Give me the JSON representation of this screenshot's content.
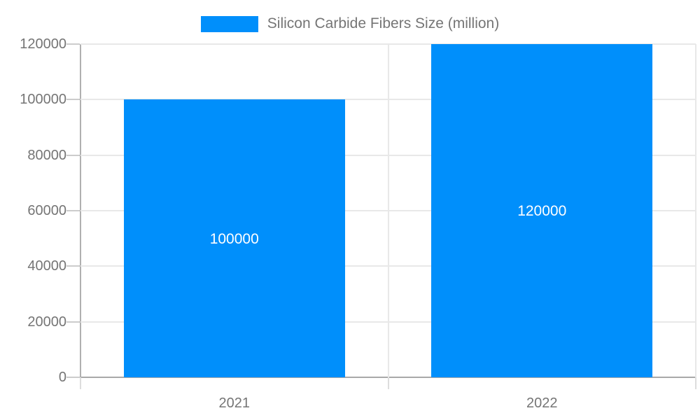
{
  "chart_data": {
    "type": "bar",
    "title": "Silicon Carbide Fibers Size (million)",
    "legend": {
      "label": "Silicon Carbide Fibers Size (million)",
      "position": "top-center"
    },
    "categories": [
      "2021",
      "2022"
    ],
    "values": [
      100000,
      120000
    ],
    "bar_labels": [
      "100000",
      "120000"
    ],
    "xlabel": "",
    "ylabel": "",
    "ylim": [
      0,
      120000
    ],
    "yticks": [
      0,
      20000,
      40000,
      60000,
      80000,
      100000,
      120000
    ],
    "ytick_labels": [
      "0",
      "20000",
      "40000",
      "60000",
      "80000",
      "100000",
      "120000"
    ],
    "grid": true,
    "colors": {
      "bar": "#008ffb",
      "text": "#757575",
      "value_label": "#ffffff",
      "gridline": "#e8e8e8",
      "axis": "#b0b0b0",
      "background": "#ffffff"
    }
  }
}
